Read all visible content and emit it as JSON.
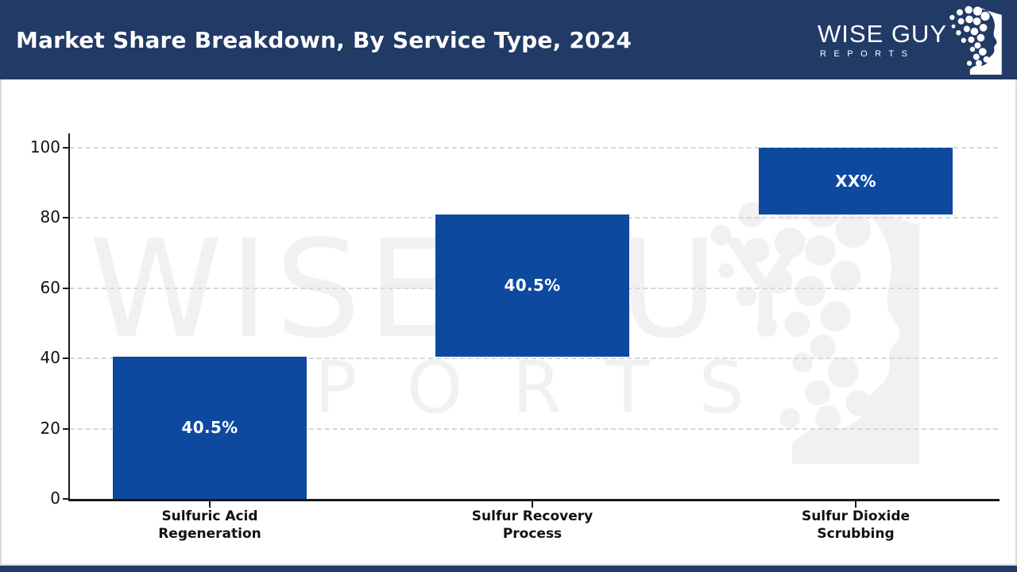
{
  "header": {
    "title": "Market Share Breakdown, By Service Type, 2024",
    "logo_line1": "WISE GUY",
    "logo_line2": "REPORTS"
  },
  "watermark": {
    "line1": "WISE GUY",
    "line2": "REPORTS"
  },
  "colors": {
    "header_bg": "#213a66",
    "bar": "#0d4a9f",
    "grid": "#d8d8d8",
    "axis": "#1a1a1a",
    "watermark": "#f1f1f2",
    "bar_label": "#ffffff"
  },
  "chart_data": {
    "type": "bar",
    "subtype": "floating-segment-waterfall",
    "title": "Market Share Breakdown, By Service Type, 2024",
    "categories": [
      {
        "line1": "Sulfuric Acid",
        "line2": "Regeneration"
      },
      {
        "line1": "Sulfur Recovery",
        "line2": "Process"
      },
      {
        "line1": "Sulfur Dioxide",
        "line2": "Scrubbing"
      }
    ],
    "segments": [
      {
        "category": "Sulfuric Acid Regeneration",
        "start": 0,
        "end": 40.5,
        "label": "40.5%"
      },
      {
        "category": "Sulfur Recovery Process",
        "start": 40.5,
        "end": 81,
        "label": "40.5%"
      },
      {
        "category": "Sulfur Dioxide Scrubbing",
        "start": 81,
        "end": 100,
        "label": "XX%"
      }
    ],
    "ylim": [
      0,
      100
    ],
    "yticks": [
      0,
      20,
      40,
      60,
      80,
      100
    ],
    "xlabel": "",
    "ylabel": "",
    "grid": "horizontal-dashed",
    "legend": "none"
  }
}
